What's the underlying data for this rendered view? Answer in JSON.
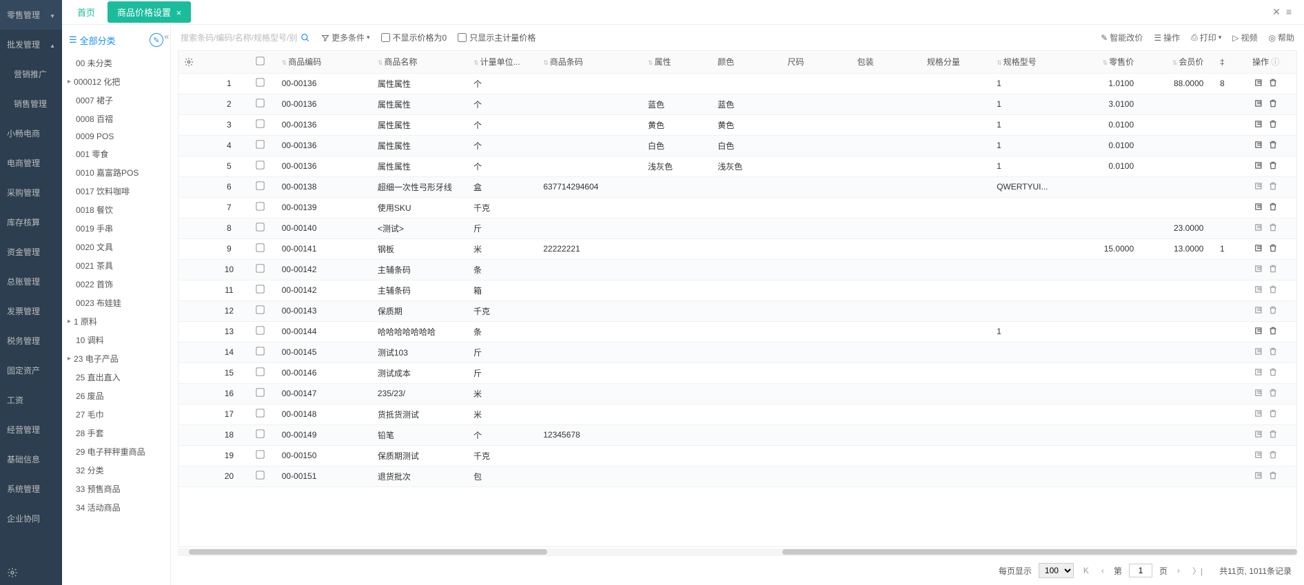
{
  "sidebar": {
    "items": [
      {
        "label": "零售管理",
        "dropdown": "down"
      },
      {
        "label": "批发管理",
        "dropdown": "up"
      },
      {
        "label": "营销推广",
        "sub": true
      },
      {
        "label": "销售管理",
        "sub": true
      },
      {
        "label": "小畅电商"
      },
      {
        "label": "电商管理"
      },
      {
        "label": "采购管理"
      },
      {
        "label": "库存核算"
      },
      {
        "label": "资金管理"
      },
      {
        "label": "总账管理"
      },
      {
        "label": "发票管理"
      },
      {
        "label": "税务管理"
      },
      {
        "label": "固定资产"
      },
      {
        "label": "工资"
      },
      {
        "label": "经营管理"
      },
      {
        "label": "基础信息"
      },
      {
        "label": "系统管理"
      },
      {
        "label": "企业协同"
      }
    ],
    "gear_icon": "gear"
  },
  "tabs": {
    "home_label": "首页",
    "active_label": "商品价格设置",
    "close_glyph": "×",
    "right_close_glyph": "✕",
    "right_menu_glyph": "≡"
  },
  "tree": {
    "header_label": "全部分类",
    "header_icon": "list",
    "edit_icon": "pencil",
    "collapse_icon": "«",
    "nodes": [
      {
        "label": "00 未分类"
      },
      {
        "label": "000012 化把",
        "children": true
      },
      {
        "label": "0007 裙子"
      },
      {
        "label": "0008 百褶"
      },
      {
        "label": "0009 POS"
      },
      {
        "label": "001 零食"
      },
      {
        "label": "0010 嘉富路POS"
      },
      {
        "label": "0017 饮料咖啡"
      },
      {
        "label": "0018 餐饮"
      },
      {
        "label": "0019 手串"
      },
      {
        "label": "0020 文具"
      },
      {
        "label": "0021 茶具"
      },
      {
        "label": "0022 首饰"
      },
      {
        "label": "0023 布娃娃"
      },
      {
        "label": "1 原料",
        "children": true
      },
      {
        "label": "10 调料"
      },
      {
        "label": "23 电子产品",
        "children": true
      },
      {
        "label": "25 直出直入"
      },
      {
        "label": "26 废品"
      },
      {
        "label": "27 毛巾"
      },
      {
        "label": "28 手套"
      },
      {
        "label": "29 电子秤秤重商品"
      },
      {
        "label": "32 分类"
      },
      {
        "label": "33 预售商品"
      },
      {
        "label": "34 活动商品"
      }
    ]
  },
  "toolbar": {
    "search_placeholder": "搜索条码/编码/名称/规格型号/别名",
    "more_conditions": "更多条件",
    "hide_zero_price": "不显示价格为0",
    "only_main_unit": "只显示主计量价格",
    "ai_price": "智能改价",
    "operate": "操作",
    "print": "打印",
    "video": "视频",
    "help": "帮助"
  },
  "table": {
    "columns": {
      "gear": "⚙",
      "code": "商品编码",
      "name": "商品名称",
      "unit": "计量单位...",
      "barcode": "商品条码",
      "attr": "属性",
      "color": "颜色",
      "size": "尺码",
      "pack": "包装",
      "specqty": "规格分量",
      "spec": "规格型号",
      "retail": "零售价",
      "member": "会员价",
      "extra": "‡",
      "ops": "操作"
    },
    "rows": [
      {
        "idx": 1,
        "code": "00-00136",
        "name": "属性属性",
        "unit": "个",
        "barcode": "",
        "attr": "",
        "color": "",
        "spec": "1",
        "retail": "1.0100",
        "member": "88.0000",
        "ops_enabled": true,
        "extra": "8"
      },
      {
        "idx": 2,
        "code": "00-00136",
        "name": "属性属性",
        "unit": "个",
        "barcode": "",
        "attr": "蓝色",
        "color": "蓝色",
        "spec": "1",
        "retail": "3.0100",
        "member": "",
        "ops_enabled": true
      },
      {
        "idx": 3,
        "code": "00-00136",
        "name": "属性属性",
        "unit": "个",
        "barcode": "",
        "attr": "黄色",
        "color": "黄色",
        "spec": "1",
        "retail": "0.0100",
        "member": "",
        "ops_enabled": true
      },
      {
        "idx": 4,
        "code": "00-00136",
        "name": "属性属性",
        "unit": "个",
        "barcode": "",
        "attr": "白色",
        "color": "白色",
        "spec": "1",
        "retail": "0.0100",
        "member": "",
        "ops_enabled": true
      },
      {
        "idx": 5,
        "code": "00-00136",
        "name": "属性属性",
        "unit": "个",
        "barcode": "",
        "attr": "浅灰色",
        "color": "浅灰色",
        "spec": "1",
        "retail": "0.0100",
        "member": "",
        "ops_enabled": true
      },
      {
        "idx": 6,
        "code": "00-00138",
        "name": "超细一次性弓形牙线",
        "unit": "盒",
        "barcode": "637714294604",
        "attr": "",
        "color": "",
        "spec": "QWERTYUI...",
        "retail": "",
        "member": "",
        "ops_enabled": false
      },
      {
        "idx": 7,
        "code": "00-00139",
        "name": "使用SKU",
        "unit": "千克",
        "barcode": "",
        "attr": "",
        "color": "",
        "spec": "",
        "retail": "",
        "member": "",
        "ops_enabled": true
      },
      {
        "idx": 8,
        "code": "00-00140",
        "name": "<测试>",
        "unit": "斤",
        "barcode": "",
        "attr": "",
        "color": "",
        "spec": "",
        "retail": "",
        "member": "23.0000",
        "ops_enabled": false
      },
      {
        "idx": 9,
        "code": "00-00141",
        "name": "钢板",
        "unit": "米",
        "barcode": "22222221",
        "attr": "",
        "color": "",
        "spec": "",
        "retail": "15.0000",
        "member": "13.0000",
        "ops_enabled": true,
        "extra": "1"
      },
      {
        "idx": 10,
        "code": "00-00142",
        "name": "主辅条码",
        "unit": "条",
        "barcode": "",
        "attr": "",
        "color": "",
        "spec": "",
        "retail": "",
        "member": "",
        "ops_enabled": false
      },
      {
        "idx": 11,
        "code": "00-00142",
        "name": "主辅条码",
        "unit": "箱",
        "barcode": "",
        "attr": "",
        "color": "",
        "spec": "",
        "retail": "",
        "member": "",
        "ops_enabled": false
      },
      {
        "idx": 12,
        "code": "00-00143",
        "name": "保质期",
        "unit": "千克",
        "barcode": "",
        "attr": "",
        "color": "",
        "spec": "",
        "retail": "",
        "member": "",
        "ops_enabled": false
      },
      {
        "idx": 13,
        "code": "00-00144",
        "name": "哈哈哈哈哈哈哈",
        "unit": "条",
        "barcode": "",
        "attr": "",
        "color": "",
        "spec": "1",
        "retail": "",
        "member": "",
        "ops_enabled": true
      },
      {
        "idx": 14,
        "code": "00-00145",
        "name": "测试103",
        "unit": "斤",
        "barcode": "",
        "attr": "",
        "color": "",
        "spec": "",
        "retail": "",
        "member": "",
        "ops_enabled": false
      },
      {
        "idx": 15,
        "code": "00-00146",
        "name": "测试成本",
        "unit": "斤",
        "barcode": "",
        "attr": "",
        "color": "",
        "spec": "",
        "retail": "",
        "member": "",
        "ops_enabled": false
      },
      {
        "idx": 16,
        "code": "00-00147",
        "name": "235/23/",
        "unit": "米",
        "barcode": "",
        "attr": "",
        "color": "",
        "spec": "",
        "retail": "",
        "member": "",
        "ops_enabled": false
      },
      {
        "idx": 17,
        "code": "00-00148",
        "name": "货抵货测试",
        "unit": "米",
        "barcode": "",
        "attr": "",
        "color": "",
        "spec": "",
        "retail": "",
        "member": "",
        "ops_enabled": false
      },
      {
        "idx": 18,
        "code": "00-00149",
        "name": "铅笔",
        "unit": "个",
        "barcode": "12345678",
        "attr": "",
        "color": "",
        "spec": "",
        "retail": "",
        "member": "",
        "ops_enabled": false
      },
      {
        "idx": 19,
        "code": "00-00150",
        "name": "保质期测试",
        "unit": "千克",
        "barcode": "",
        "attr": "",
        "color": "",
        "spec": "",
        "retail": "",
        "member": "",
        "ops_enabled": false
      },
      {
        "idx": 20,
        "code": "00-00151",
        "name": "退货批次",
        "unit": "包",
        "barcode": "",
        "attr": "",
        "color": "",
        "spec": "",
        "retail": "",
        "member": "",
        "ops_enabled": false
      }
    ]
  },
  "scrollbar": {
    "thumb1_left_pct": 1,
    "thumb1_width_pct": 32,
    "thumb2_left_pct": 54,
    "thumb2_width_pct": 46
  },
  "footer": {
    "per_page_label": "每页显示",
    "per_page_value": "100",
    "page_prefix": "第",
    "page_value": "1",
    "page_suffix": "页",
    "summary": "共11页, 1011条记录"
  },
  "colors": {
    "accent": "#1abc9c",
    "link": "#1890ff",
    "sidebar_bg": "#2c3e50"
  }
}
